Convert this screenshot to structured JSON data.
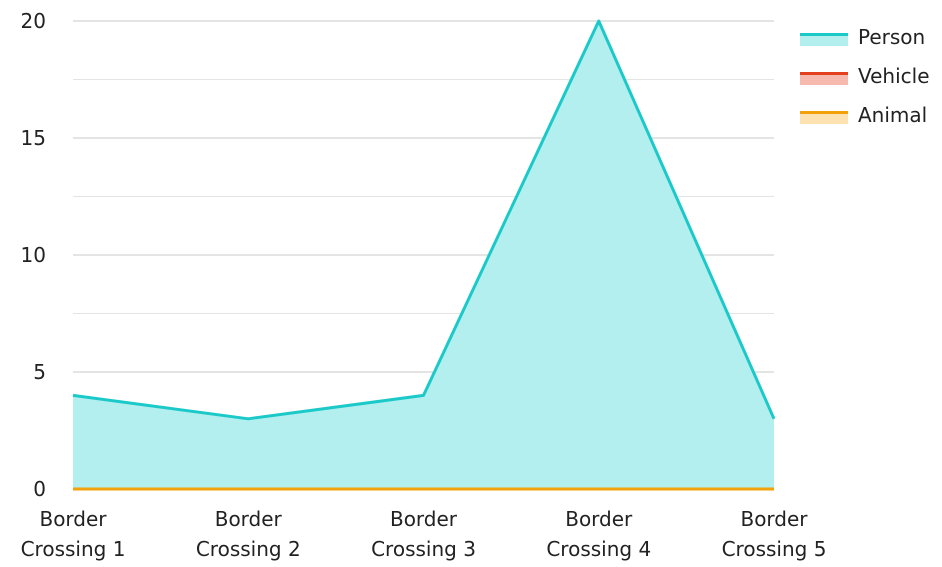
{
  "chart_data": {
    "type": "area",
    "categories": [
      [
        "Border",
        "Crossing 1"
      ],
      [
        "Border",
        "Crossing 2"
      ],
      [
        "Border",
        "Crossing 3"
      ],
      [
        "Border",
        "Crossing 4"
      ],
      [
        "Border",
        "Crossing 5"
      ]
    ],
    "series": [
      {
        "name": "Person",
        "values": [
          4,
          3,
          4,
          20,
          3
        ],
        "color": "#1cc9c9",
        "fill": "#b2efee"
      },
      {
        "name": "Vehicle",
        "values": [
          0,
          0,
          0,
          0,
          0
        ],
        "color": "#e2401f",
        "fill": "#f7b9ad"
      },
      {
        "name": "Animal",
        "values": [
          0,
          0,
          0,
          0,
          0
        ],
        "color": "#f2a10b",
        "fill": "#fde2b2"
      }
    ],
    "ylim": [
      0,
      20
    ],
    "yticks": [
      "0",
      "5",
      "10",
      "15",
      "20"
    ],
    "grid": true,
    "legend": "top-right",
    "colors": {
      "gridline": "#c8c8c8",
      "minor_gridline": "#e4e4e4"
    }
  }
}
